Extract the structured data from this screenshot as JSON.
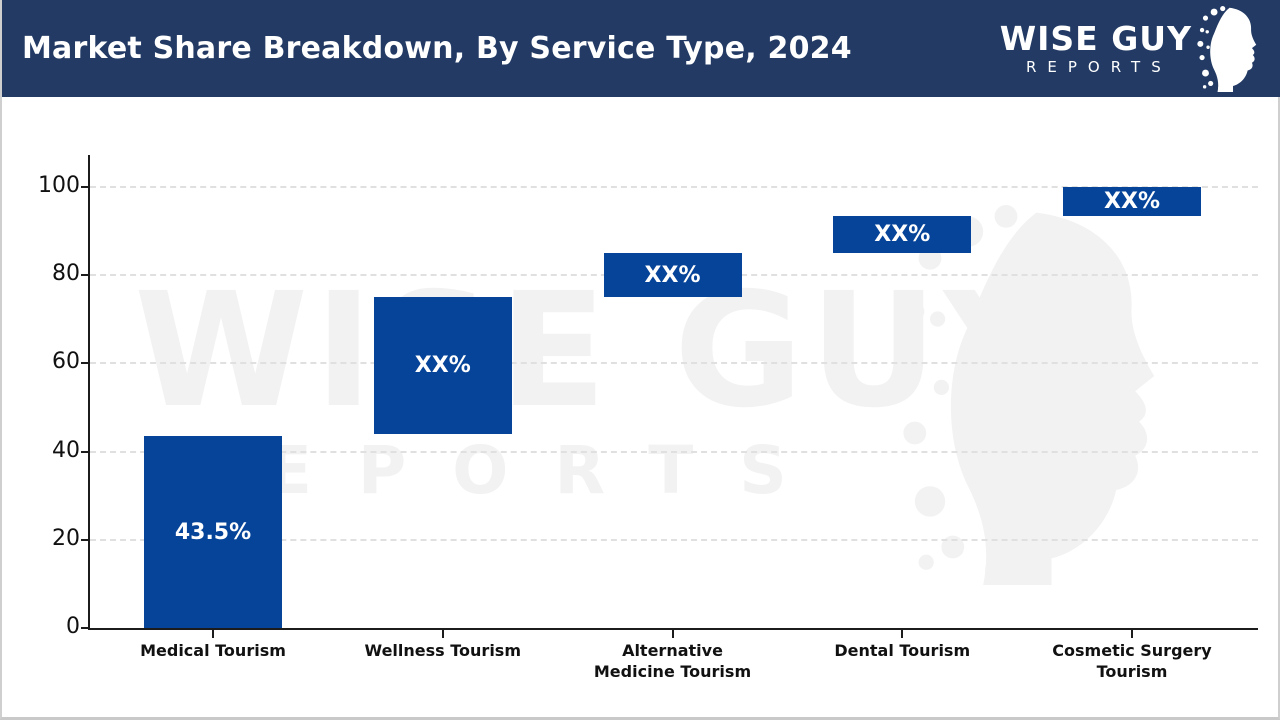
{
  "header": {
    "title": "Market Share Breakdown, By Service Type, 2024",
    "logo": {
      "line1": "WISE GUY",
      "line2": "REPORTS"
    }
  },
  "watermark": {
    "line1": "WISE GUY",
    "line2": "REPORTS"
  },
  "colors": {
    "header_bg": "#223A64",
    "bar": "#064499",
    "bar_label": "#ffffff",
    "grid": "#e0e0e0",
    "axis": "#1c1c1c",
    "watermark": "#f2f2f2"
  },
  "chart_data": {
    "type": "bar",
    "subtype": "waterfall",
    "title": "Market Share Breakdown, By Service Type, 2024",
    "categories": [
      "Medical Tourism",
      "Wellness Tourism",
      "Alternative Medicine Tourism",
      "Dental Tourism",
      "Cosmetic Surgery Tourism"
    ],
    "category_label_lines": [
      [
        "Medical Tourism"
      ],
      [
        "Wellness Tourism"
      ],
      [
        "Alternative",
        "Medicine Tourism"
      ],
      [
        "Dental Tourism"
      ],
      [
        "Cosmetic Surgery",
        "Tourism"
      ]
    ],
    "series": [
      {
        "category": "Medical Tourism",
        "start": 0,
        "end": 43.5,
        "label": "43.5%"
      },
      {
        "category": "Wellness Tourism",
        "start": 44,
        "end": 75,
        "label": "XX%"
      },
      {
        "category": "Alternative Medicine Tourism",
        "start": 75,
        "end": 85,
        "label": "XX%"
      },
      {
        "category": "Dental Tourism",
        "start": 85,
        "end": 93.5,
        "label": "XX%"
      },
      {
        "category": "Cosmetic Surgery Tourism",
        "start": 93.5,
        "end": 100,
        "label": "XX%"
      }
    ],
    "yticks": [
      0,
      20,
      40,
      60,
      80,
      100
    ],
    "ylim": [
      0,
      107
    ],
    "xlabel": "",
    "ylabel": "",
    "grid": "horizontal-dashed",
    "legend": "none"
  }
}
